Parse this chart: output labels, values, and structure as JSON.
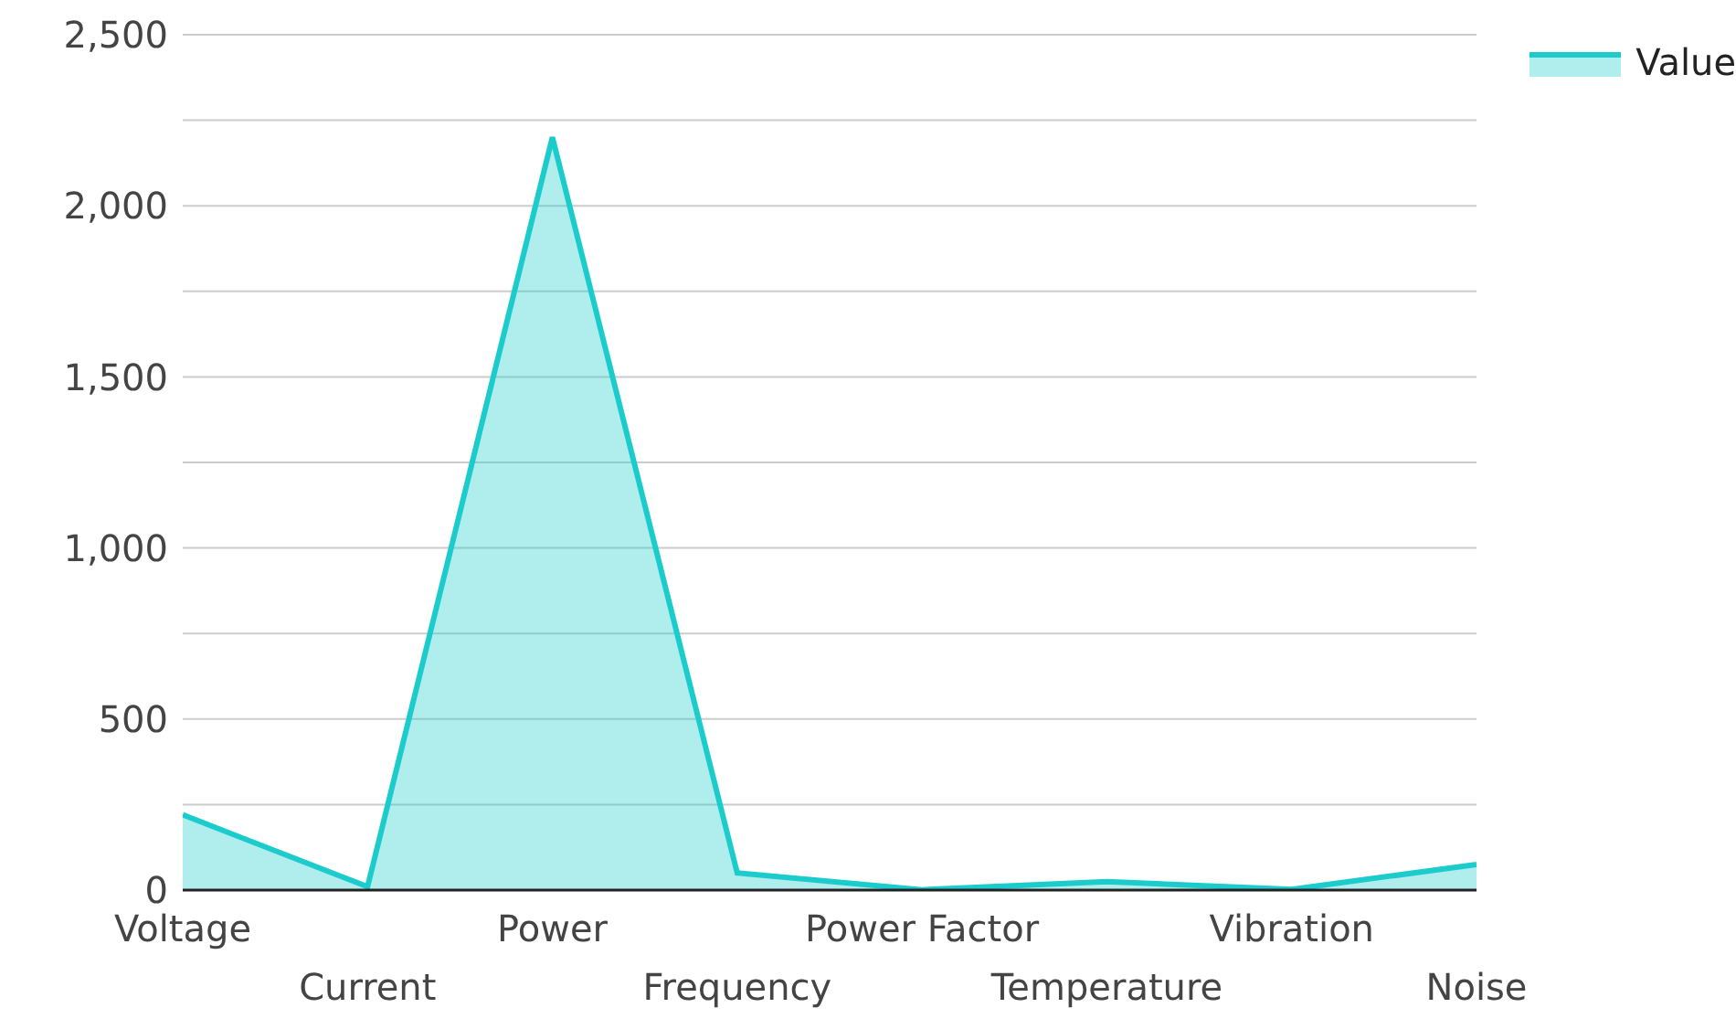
{
  "chart_data": {
    "type": "area",
    "categories": [
      "Voltage",
      "Current",
      "Power",
      "Frequency",
      "Power Factor",
      "Temperature",
      "Vibration",
      "Noise"
    ],
    "series": [
      {
        "name": "Value",
        "color": "#1ccccc",
        "values": [
          220,
          10,
          2200,
          50,
          1,
          25,
          2,
          75
        ]
      }
    ],
    "ylim": [
      0,
      2500
    ],
    "yticks": [
      0,
      {
        "value": 250,
        "label": null
      },
      500,
      {
        "value": 750,
        "label": null
      },
      {
        "value": 1000,
        "label": "1,000"
      },
      {
        "value": 1250,
        "label": null
      },
      {
        "value": 1500,
        "label": "1,500"
      },
      {
        "value": 1750,
        "label": null
      },
      {
        "value": 2000,
        "label": "2,000"
      },
      {
        "value": 2250,
        "label": null
      },
      {
        "value": 2500,
        "label": "2,500"
      }
    ],
    "grid": "y",
    "legend": "top right"
  }
}
